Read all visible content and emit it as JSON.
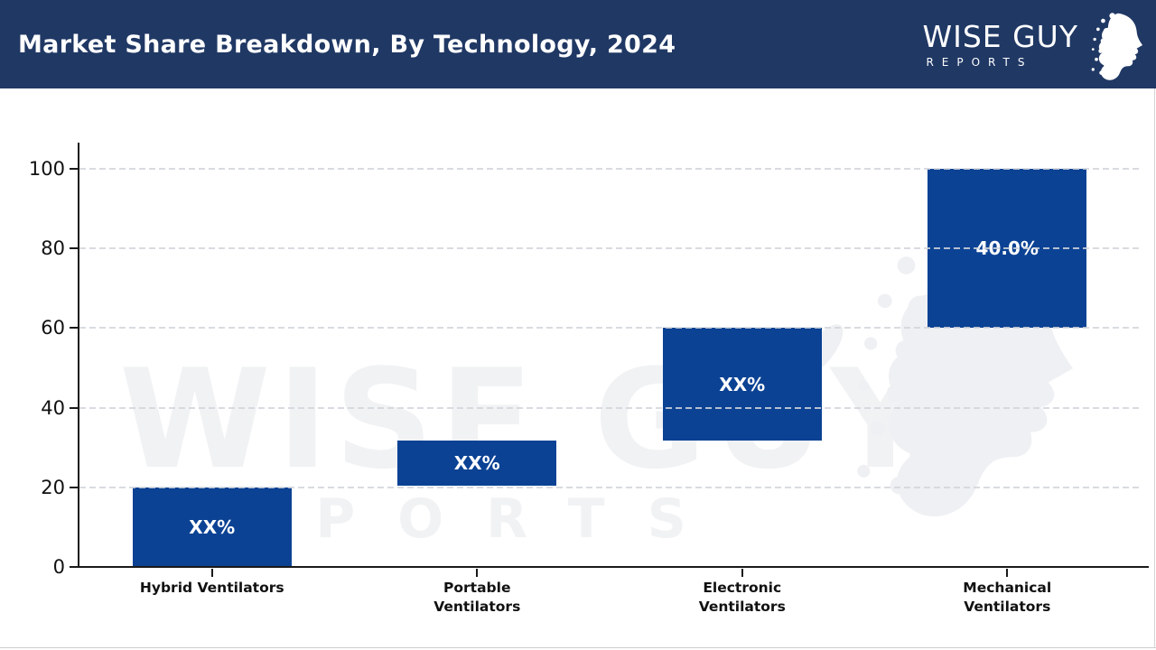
{
  "header": {
    "title": "Market Share Breakdown, By Technology, 2024",
    "bg_color": "#203864",
    "logo": {
      "line1": "WISE GUY",
      "line2": "REPORTS"
    }
  },
  "watermark": {
    "line1": "WISE GUY",
    "line2": "REPORTS",
    "color": "#f1f2f4"
  },
  "chart_data": {
    "type": "bar",
    "subtype": "floating-waterfall",
    "title": "Market Share Breakdown, By Technology, 2024",
    "categories": [
      "Hybrid Ventilators",
      "Portable\nVentilators",
      "Electronic\nVentilators",
      "Mechanical\nVentilators"
    ],
    "segments": [
      {
        "category": "Hybrid Ventilators",
        "from": 0,
        "to": 20,
        "label": "XX%"
      },
      {
        "category": "Portable Ventilators",
        "from": 20.4,
        "to": 31.7,
        "label": "XX%"
      },
      {
        "category": "Electronic Ventilators",
        "from": 31.7,
        "to": 60,
        "label": "XX%"
      },
      {
        "category": "Mechanical Ventilators",
        "from": 60,
        "to": 100,
        "label": "40.0%"
      }
    ],
    "y_ticks": [
      0,
      20,
      40,
      60,
      80,
      100
    ],
    "ylim": [
      0,
      100
    ],
    "xlabel": "",
    "ylabel": "",
    "grid": "horizontal-dashed",
    "legend": "none",
    "bar_color": "#0b4294",
    "bar_label_color": "#ffffff"
  }
}
